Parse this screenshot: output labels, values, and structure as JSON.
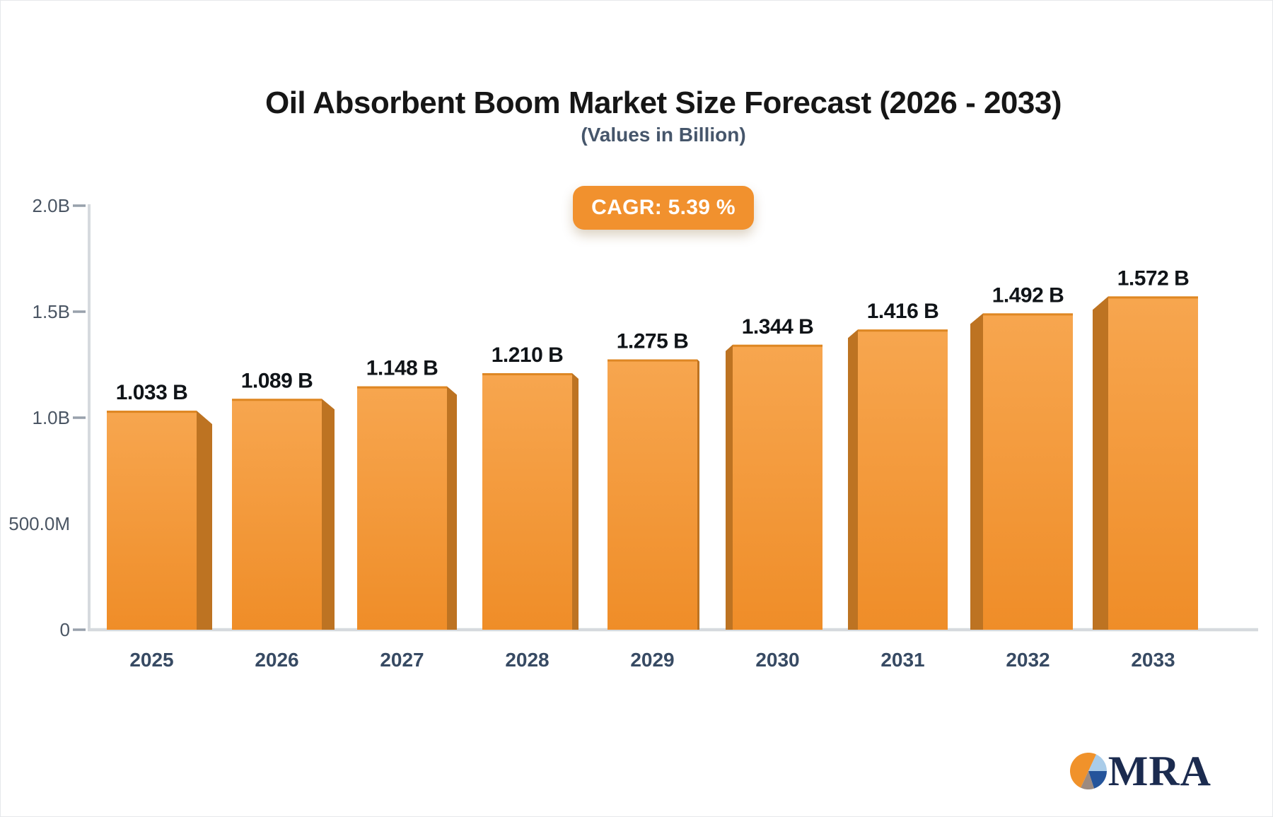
{
  "chart_data": {
    "type": "bar",
    "title": "Oil Absorbent Boom Market Size Forecast (2026 - 2033)",
    "subtitle": "(Values in Billion)",
    "cagr_label": "CAGR: 5.39 %",
    "categories": [
      "2025",
      "2026",
      "2027",
      "2028",
      "2029",
      "2030",
      "2031",
      "2032",
      "2033"
    ],
    "values": [
      1.033,
      1.089,
      1.148,
      1.21,
      1.275,
      1.344,
      1.416,
      1.492,
      1.572
    ],
    "value_labels": [
      "1.033 B",
      "1.089 B",
      "1.148 B",
      "1.210 B",
      "1.275 B",
      "1.344 B",
      "1.416 B",
      "1.492 B",
      "1.572 B"
    ],
    "xlabel": "",
    "ylabel": "",
    "ylim": [
      0,
      2.0
    ],
    "grid": false,
    "legend": "none",
    "y_ticks": [
      {
        "label": "0",
        "value": 0,
        "dash": true
      },
      {
        "label": "500.0M",
        "value": 0.5,
        "dash": false
      },
      {
        "label": "1.0B",
        "value": 1.0,
        "dash": true
      },
      {
        "label": "1.5B",
        "value": 1.5,
        "dash": true
      },
      {
        "label": "2.0B",
        "value": 2.0,
        "dash": true
      }
    ]
  },
  "logo": {
    "text": "MRA"
  },
  "colors": {
    "bar_top": "#f7a64f",
    "bar_bottom": "#ef8d28",
    "bar_side": "#bd7322",
    "bar_edge": "#de8723",
    "badge_bg": "#f1912e",
    "axis_line": "#d6dade",
    "tick_dash": "#98a1ac",
    "title_text": "#161616",
    "subtitle_text": "#46566b",
    "value_label": "#101418",
    "year_label": "#374a63",
    "ytick_label": "#4a5563",
    "logo_navy": "#1b2b4f",
    "logo_orange": "#f0922b",
    "logo_lightblue": "#a9cce9",
    "logo_blue": "#24549b",
    "logo_gray": "#9c8a80"
  }
}
